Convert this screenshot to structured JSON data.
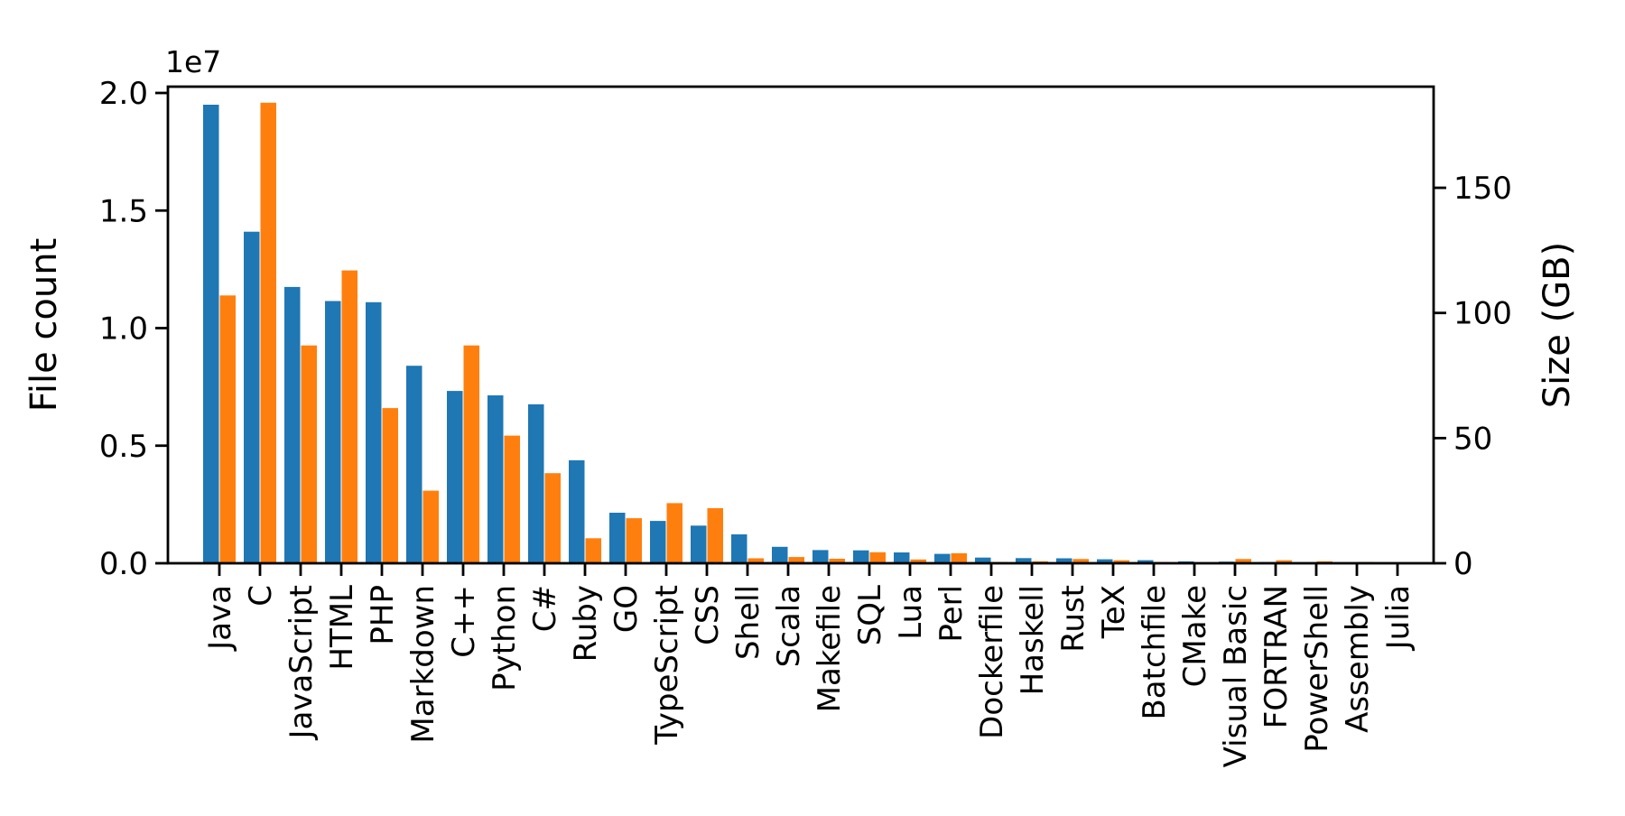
{
  "chart_data": {
    "type": "bar",
    "title": "",
    "categories": [
      "Java",
      "C",
      "JavaScript",
      "HTML",
      "PHP",
      "Markdown",
      "C++",
      "Python",
      "C#",
      "Ruby",
      "GO",
      "TypeScript",
      "CSS",
      "Shell",
      "Scala",
      "Makefile",
      "SQL",
      "Lua",
      "Perl",
      "Dockerfile",
      "Haskell",
      "Rust",
      "TeX",
      "Batchfile",
      "CMake",
      "Visual Basic",
      "FORTRAN",
      "PowerShell",
      "Assembly",
      "Julia"
    ],
    "series": [
      {
        "name": "File count",
        "axis": "left",
        "color": "#1f77b4",
        "values": [
          19500000,
          14100000,
          11750000,
          11150000,
          11100000,
          8400000,
          7330000,
          7140000,
          6760000,
          4380000,
          2150000,
          1800000,
          1600000,
          1230000,
          700000,
          560000,
          550000,
          460000,
          400000,
          240000,
          220000,
          210000,
          170000,
          130000,
          80000,
          70000,
          50000,
          40000,
          30000,
          20000
        ]
      },
      {
        "name": "Size (GB)",
        "axis": "right",
        "color": "#ff7f0e",
        "values": [
          107,
          184,
          87,
          117,
          62,
          29,
          87,
          51,
          36,
          10,
          18,
          24,
          22,
          2,
          2.5,
          1.8,
          4.4,
          1.5,
          4,
          0.5,
          0.8,
          1.7,
          1.2,
          0.5,
          0.3,
          1.7,
          1.2,
          0.8,
          0.5,
          0.2
        ]
      }
    ],
    "left_axis": {
      "label": "File count",
      "label_color": "#1f77b4",
      "offset_text": "1e7",
      "tick_labels": [
        "0.0",
        "0.5",
        "1.0",
        "1.5",
        "2.0"
      ],
      "tick_values": [
        0,
        5000000,
        10000000,
        15000000,
        20000000
      ],
      "ylim": [
        0,
        20300000
      ]
    },
    "right_axis": {
      "label": "Size (GB)",
      "label_color": "#ff7f0e",
      "tick_labels": [
        "0",
        "50",
        "100",
        "150"
      ],
      "tick_values": [
        0,
        50,
        100,
        150
      ],
      "ylim": [
        0,
        190
      ]
    },
    "x_axis": {
      "tick_rotation_deg": 90
    },
    "legend": "none",
    "grid": false
  }
}
